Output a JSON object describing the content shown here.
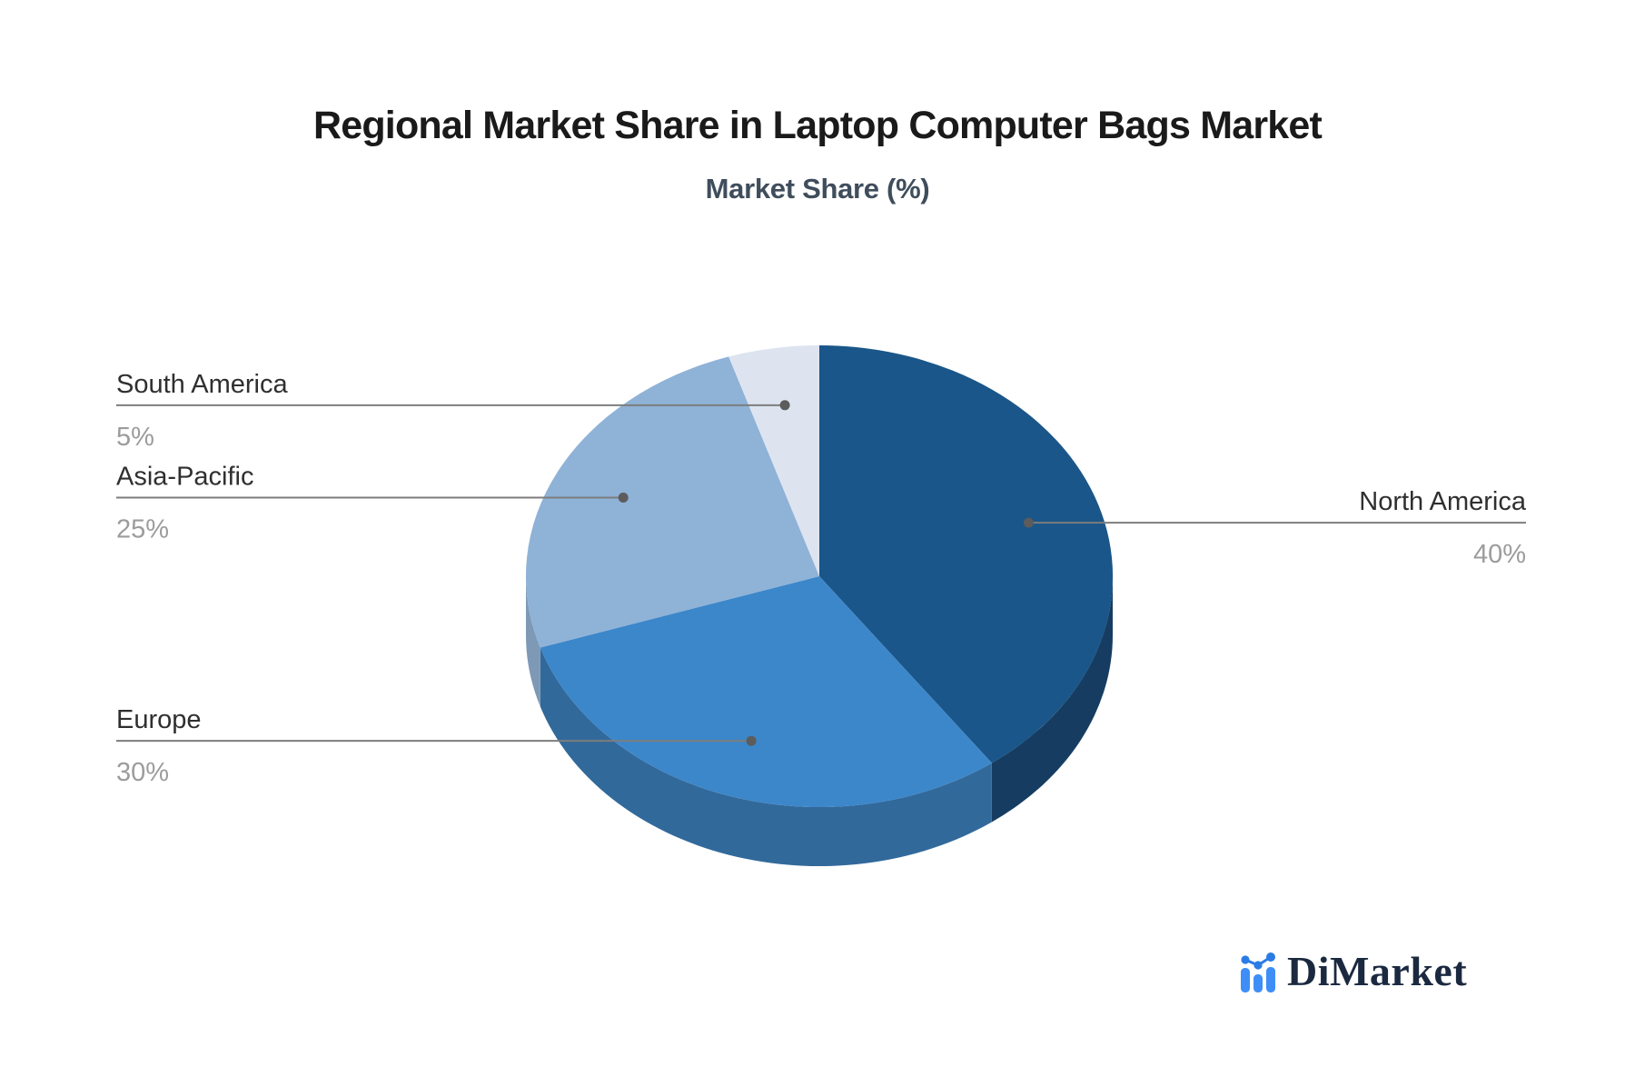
{
  "chart_data": {
    "type": "pie",
    "style": "3d",
    "title": "Regional Market Share in Laptop Computer Bags Market",
    "subtitle": "Market Share (%)",
    "unit": "%",
    "label_style": "callout-leader-lines",
    "start_angle": "12-oclock-clockwise",
    "slices": [
      {
        "label": "North America",
        "value": 40,
        "value_label": "40%",
        "color": "#1A5689",
        "side_color": "#163D61"
      },
      {
        "label": "Europe",
        "value": 30,
        "value_label": "30%",
        "color": "#3C87CA",
        "side_color": "#32699B"
      },
      {
        "label": "Asia-Pacific",
        "value": 25,
        "value_label": "25%",
        "color": "#8FB2D7",
        "side_color": "#7E99B5"
      },
      {
        "label": "South America",
        "value": 5,
        "value_label": "5%",
        "color": "#DDE4F0",
        "side_color": null
      }
    ]
  },
  "colors": {
    "background": "#FFFFFF",
    "title": "#1A1A1A",
    "subtitle": "#3F4D5C",
    "label": "#2F2F2F",
    "value": "#9C9C9C",
    "leader_line": "#7D7D7D",
    "leader_dot": "#5C5C5C",
    "logo_bar": "#3F8EF7",
    "logo_accent": "#2B7BE4",
    "logo_text": "#1B2940"
  },
  "logo": {
    "text": "DiMarket",
    "icon": "bar-line-chart-icon"
  }
}
